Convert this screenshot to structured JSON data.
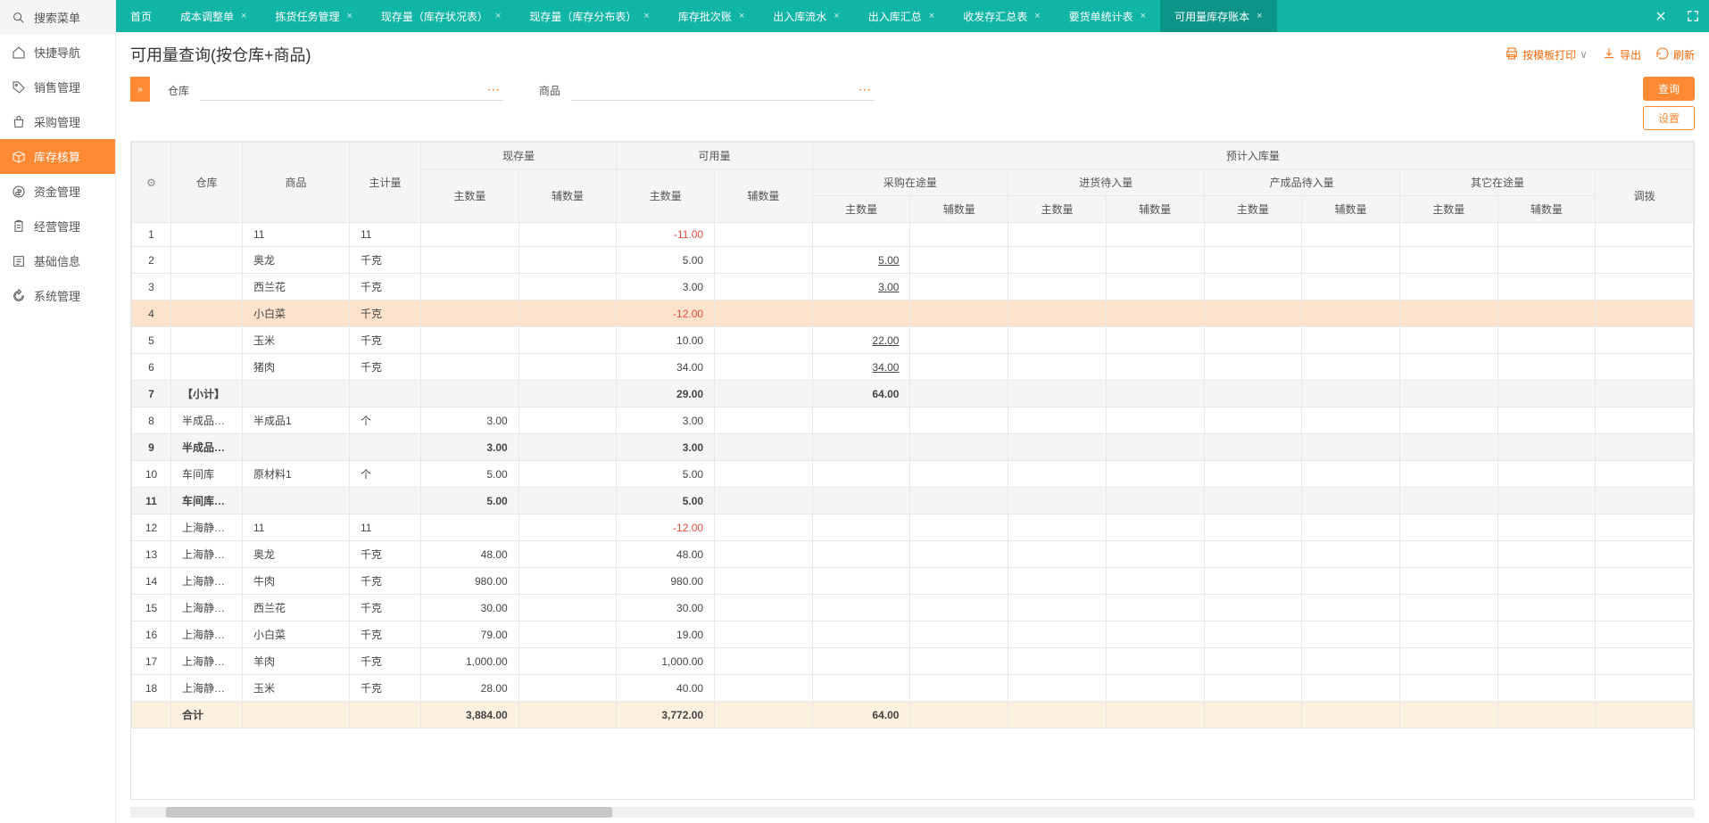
{
  "sidebar": {
    "items": [
      {
        "label": "搜索菜单",
        "icon": "search"
      },
      {
        "label": "快捷导航",
        "icon": "home"
      },
      {
        "label": "销售管理",
        "icon": "tag"
      },
      {
        "label": "采购管理",
        "icon": "bag"
      },
      {
        "label": "库存核算",
        "icon": "box",
        "active": true
      },
      {
        "label": "资金管理",
        "icon": "money"
      },
      {
        "label": "经营管理",
        "icon": "clipboard"
      },
      {
        "label": "基础信息",
        "icon": "info"
      },
      {
        "label": "系统管理",
        "icon": "loop"
      }
    ]
  },
  "tabs": [
    {
      "label": "首页",
      "closable": false
    },
    {
      "label": "成本调整单",
      "closable": true
    },
    {
      "label": "拣货任务管理",
      "closable": true
    },
    {
      "label": "现存量（库存状况表）",
      "closable": true
    },
    {
      "label": "现存量（库存分布表）",
      "closable": true
    },
    {
      "label": "库存批次账",
      "closable": true
    },
    {
      "label": "出入库流水",
      "closable": true
    },
    {
      "label": "出入库汇总",
      "closable": true
    },
    {
      "label": "收发存汇总表",
      "closable": true
    },
    {
      "label": "要货单统计表",
      "closable": true
    },
    {
      "label": "可用量库存账本",
      "closable": true,
      "active": true
    }
  ],
  "page": {
    "title": "可用量查询(按仓库+商品)",
    "actions": {
      "print": "按模板打印",
      "export": "导出",
      "refresh": "刷新"
    }
  },
  "filter": {
    "warehouse_label": "仓库",
    "product_label": "商品",
    "query_btn": "查询",
    "settings_btn": "设置"
  },
  "table": {
    "headers": {
      "warehouse": "仓库",
      "product": "商品",
      "unit": "主计量",
      "stock_group": "现存量",
      "available_group": "可用量",
      "inbound_group": "预计入库量",
      "main_qty": "主数量",
      "aux_qty": "辅数量",
      "purchase_transit": "采购在途量",
      "inbound_pending": "进货待入量",
      "finished_pending": "产成品待入量",
      "other_transit": "其它在途量",
      "adjust": "调拨"
    },
    "rows": [
      {
        "idx": "1",
        "wh": "",
        "prod": "11",
        "unit": "11",
        "stock_m": "",
        "avail_m": "-11.00",
        "neg": true
      },
      {
        "idx": "2",
        "wh": "",
        "prod": "奥龙",
        "unit": "千克",
        "stock_m": "",
        "avail_m": "5.00",
        "pt_m": "5.00",
        "ul": true
      },
      {
        "idx": "3",
        "wh": "",
        "prod": "西兰花",
        "unit": "千克",
        "stock_m": "",
        "avail_m": "3.00",
        "pt_m": "3.00",
        "ul": true
      },
      {
        "idx": "4",
        "wh": "",
        "prod": "小白菜",
        "unit": "千克",
        "stock_m": "",
        "avail_m": "-12.00",
        "neg": true,
        "hl": true
      },
      {
        "idx": "5",
        "wh": "",
        "prod": "玉米",
        "unit": "千克",
        "stock_m": "",
        "avail_m": "10.00",
        "pt_m": "22.00",
        "ul": true
      },
      {
        "idx": "6",
        "wh": "",
        "prod": "猪肉",
        "unit": "千克",
        "stock_m": "",
        "avail_m": "34.00",
        "pt_m": "34.00",
        "ul": true
      },
      {
        "idx": "7",
        "wh": "【小计】",
        "prod": "",
        "unit": "",
        "stock_m": "",
        "avail_m": "29.00",
        "pt_m": "64.00",
        "subtotal": true
      },
      {
        "idx": "8",
        "wh": "半成品仓库",
        "prod": "半成品1",
        "unit": "个",
        "stock_m": "3.00",
        "avail_m": "3.00"
      },
      {
        "idx": "9",
        "wh": "半成品仓库...",
        "prod": "",
        "unit": "",
        "stock_m": "3.00",
        "avail_m": "3.00",
        "subtotal": true
      },
      {
        "idx": "10",
        "wh": "车间库",
        "prod": "原材料1",
        "unit": "个",
        "stock_m": "5.00",
        "avail_m": "5.00"
      },
      {
        "idx": "11",
        "wh": "车间库【小...",
        "prod": "",
        "unit": "",
        "stock_m": "5.00",
        "avail_m": "5.00",
        "subtotal": true
      },
      {
        "idx": "12",
        "wh": "上海静安仓",
        "prod": "11",
        "unit": "11",
        "stock_m": "",
        "avail_m": "-12.00",
        "neg": true
      },
      {
        "idx": "13",
        "wh": "上海静安仓",
        "prod": "奥龙",
        "unit": "千克",
        "stock_m": "48.00",
        "avail_m": "48.00"
      },
      {
        "idx": "14",
        "wh": "上海静安仓",
        "prod": "牛肉",
        "unit": "千克",
        "stock_m": "980.00",
        "avail_m": "980.00"
      },
      {
        "idx": "15",
        "wh": "上海静安仓",
        "prod": "西兰花",
        "unit": "千克",
        "stock_m": "30.00",
        "avail_m": "30.00"
      },
      {
        "idx": "16",
        "wh": "上海静安仓",
        "prod": "小白菜",
        "unit": "千克",
        "stock_m": "79.00",
        "avail_m": "19.00"
      },
      {
        "idx": "17",
        "wh": "上海静安仓",
        "prod": "羊肉",
        "unit": "千克",
        "stock_m": "1,000.00",
        "avail_m": "1,000.00"
      },
      {
        "idx": "18",
        "wh": "上海静安仓",
        "prod": "玉米",
        "unit": "千克",
        "stock_m": "28.00",
        "avail_m": "40.00",
        "neg": false
      }
    ],
    "total": {
      "label": "合计",
      "stock_m": "3,884.00",
      "avail_m": "3,772.00",
      "pt_m": "64.00"
    }
  }
}
